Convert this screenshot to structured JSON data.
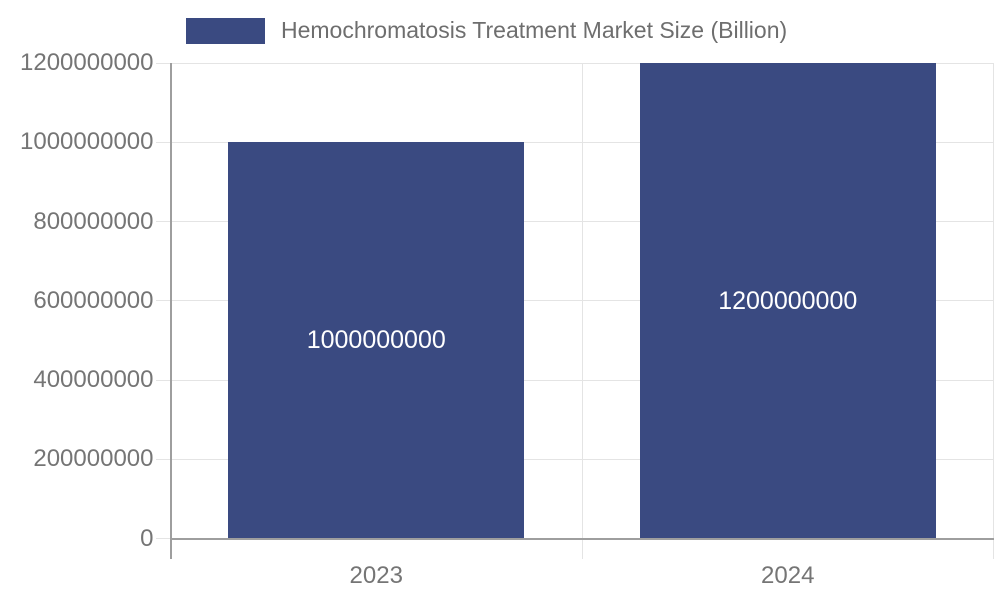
{
  "chart_data": {
    "type": "bar",
    "title": "Hemochromatosis Treatment Market Size (Billion)",
    "categories": [
      "2023",
      "2024"
    ],
    "values": [
      1000000000,
      1200000000
    ],
    "bar_value_labels": [
      "1000000000",
      "1200000000"
    ],
    "xlabel": "",
    "ylabel": "",
    "ylim": [
      0,
      1200000000
    ],
    "yticks": [
      0,
      200000000,
      400000000,
      600000000,
      800000000,
      1000000000,
      1200000000
    ],
    "ytick_labels": [
      "0",
      "200000000",
      "400000000",
      "600000000",
      "800000000",
      "1000000000",
      "1200000000"
    ],
    "grid": true,
    "legend_position": "top-left"
  },
  "colors": {
    "bar": "#3A4A81",
    "grid": "#E4E4E4",
    "axis": "#9E9E9E",
    "tick_text": "#757575",
    "legend_text": "#6E6E6E",
    "bar_label": "#FFFFFF",
    "background": "#FFFFFF"
  }
}
